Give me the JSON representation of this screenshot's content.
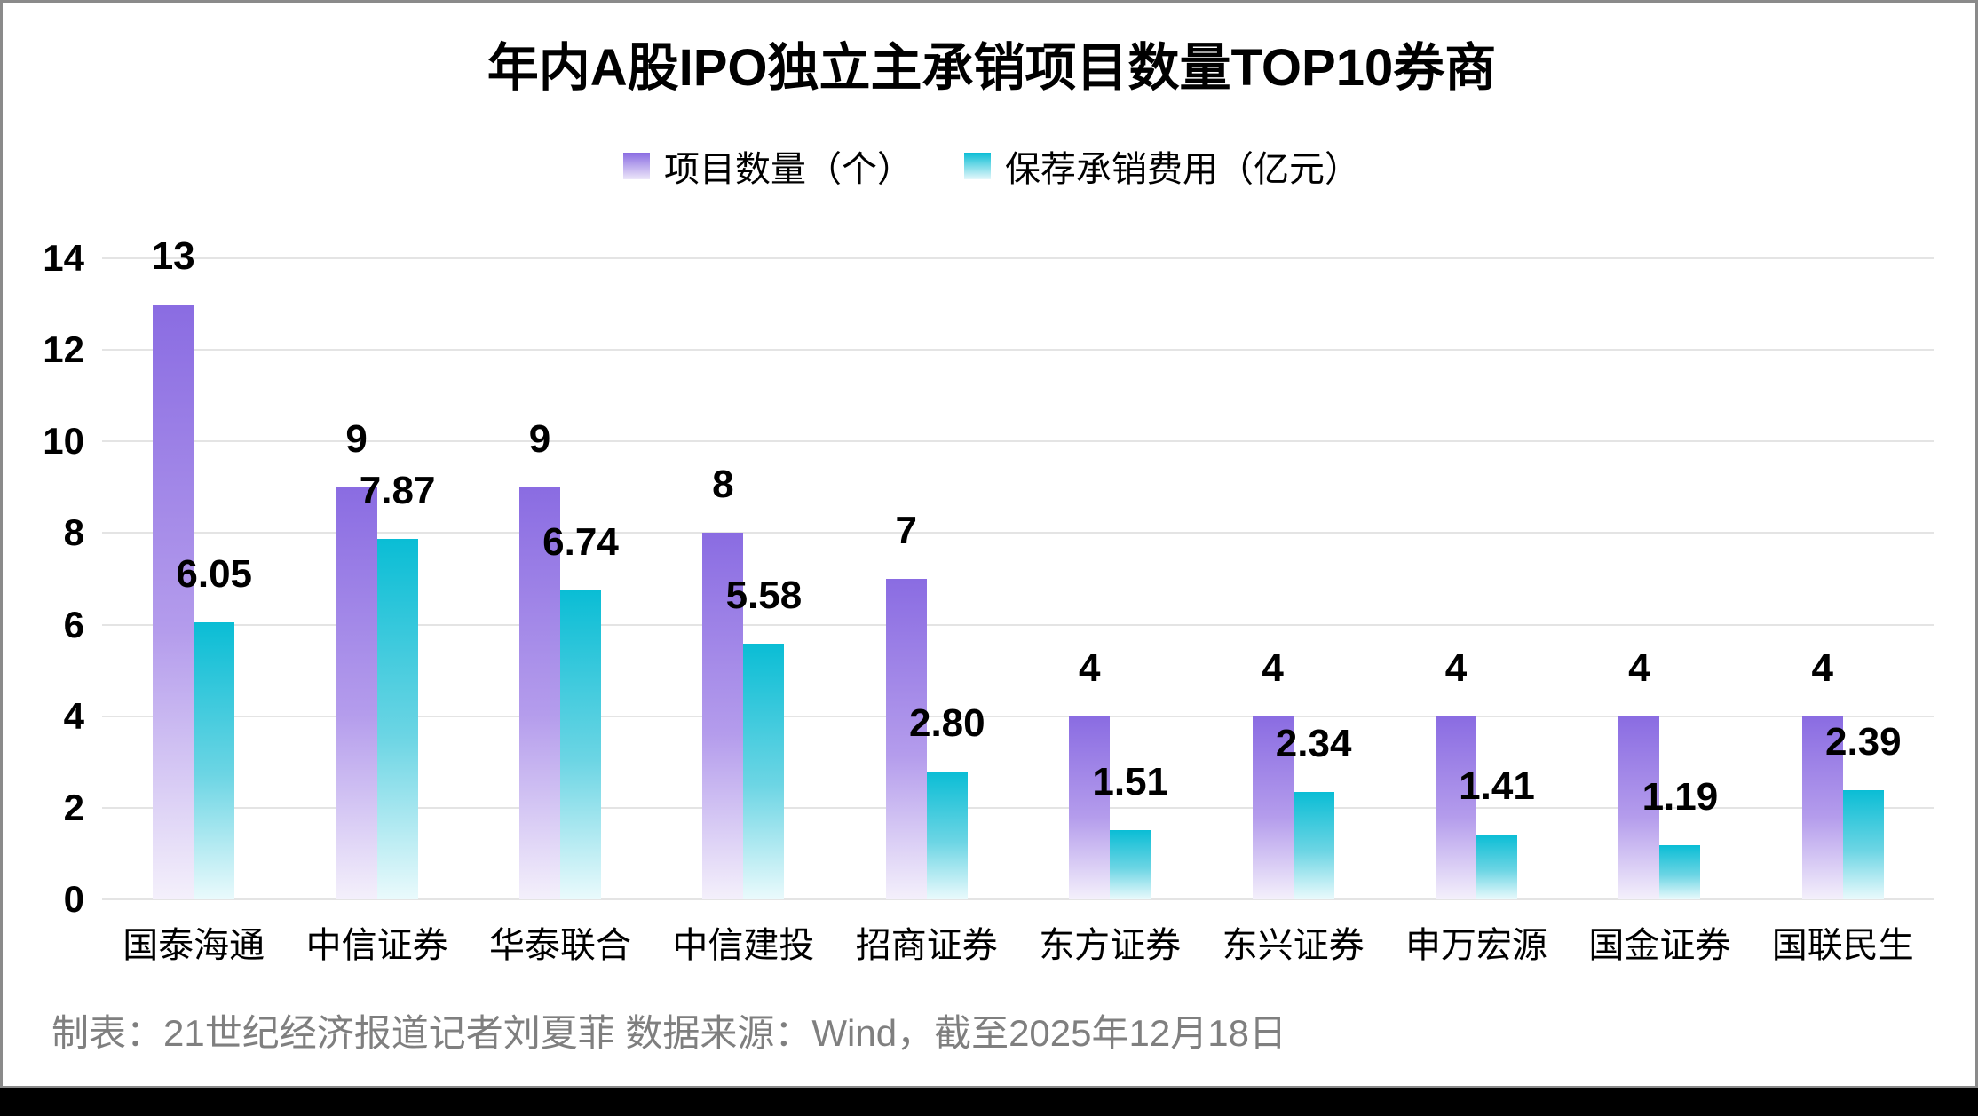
{
  "chart_data": {
    "type": "bar",
    "title": "年内A股IPO独立主承销项目数量TOP10券商",
    "categories": [
      "国泰海通",
      "中信证券",
      "华泰联合",
      "中信建投",
      "招商证券",
      "东方证券",
      "东兴证券",
      "申万宏源",
      "国金证券",
      "国联民生"
    ],
    "series": [
      {
        "name": "项目数量（个）",
        "values": [
          13,
          9,
          9,
          8,
          7,
          4,
          4,
          4,
          4,
          4
        ],
        "labels": [
          "13",
          "9",
          "9",
          "8",
          "7",
          "4",
          "4",
          "4",
          "4",
          "4"
        ],
        "color": "#8a6ce2",
        "fade": "#f4f0fb"
      },
      {
        "name": "保荐承销费用（亿元）",
        "values": [
          6.05,
          7.87,
          6.74,
          5.58,
          2.8,
          1.51,
          2.34,
          1.41,
          1.19,
          2.39
        ],
        "labels": [
          "6.05",
          "7.87",
          "6.74",
          "5.58",
          "2.80",
          "1.51",
          "2.34",
          "1.41",
          "1.19",
          "2.39"
        ],
        "color": "#0abdd5",
        "fade": "#eafafc"
      }
    ],
    "ylim": [
      0,
      14
    ],
    "ytick_step": 2,
    "yticks": [
      "0",
      "2",
      "4",
      "6",
      "8",
      "10",
      "12",
      "14"
    ],
    "grid": true,
    "legend_position": "top",
    "xlabel": "",
    "ylabel": ""
  },
  "footer": {
    "text": "制表：21世纪经济报道记者刘夏菲 数据来源：Wind，截至2025年12月18日"
  },
  "colors": {
    "projects_bar": "#8a6ce2",
    "fee_bar": "#0abdd5",
    "gridline": "#e4e4e4",
    "footer_text": "#7f7f7f",
    "panel_border": "#8a8a8a",
    "bottom_bar": "#000000",
    "background": "#ffffff"
  }
}
